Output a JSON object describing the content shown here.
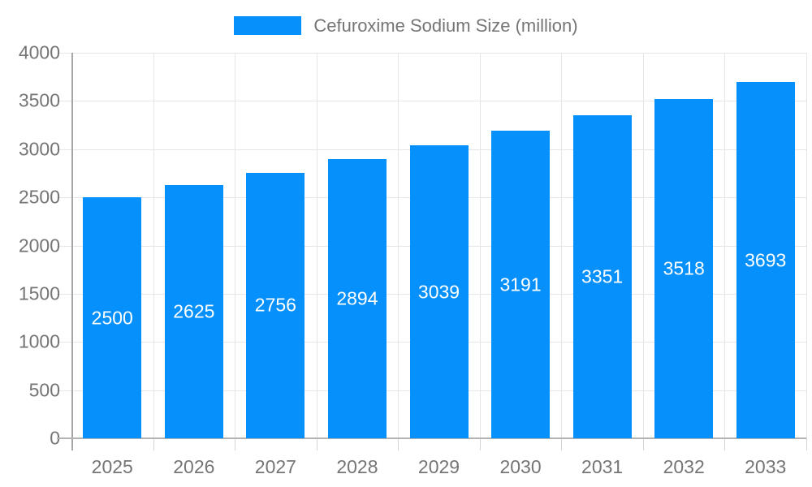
{
  "chart_data": {
    "type": "bar",
    "title": "Cefuroxime Sodium Size (million)",
    "categories": [
      "2025",
      "2026",
      "2027",
      "2028",
      "2029",
      "2030",
      "2031",
      "2032",
      "2033"
    ],
    "values": [
      2500,
      2625,
      2756,
      2894,
      3039,
      3191,
      3351,
      3518,
      3693
    ],
    "xlabel": "",
    "ylabel": "",
    "ylim": [
      0,
      4000
    ],
    "yticks": [
      0,
      500,
      1000,
      1500,
      2000,
      2500,
      3000,
      3500,
      4000
    ],
    "grid": true,
    "legend_position": "top-center",
    "bar_labels_inside": true,
    "colors": {
      "bar": "#0590FB",
      "bar_value_text": "#ffffff",
      "axis_text": "#757575",
      "legend_text": "#757575",
      "gridline": "#e6e6e6",
      "axis_line": "#a6a6a6",
      "baseline": "#b3b3b3",
      "tick": "#d4d4d4",
      "background": "#ffffff"
    }
  }
}
